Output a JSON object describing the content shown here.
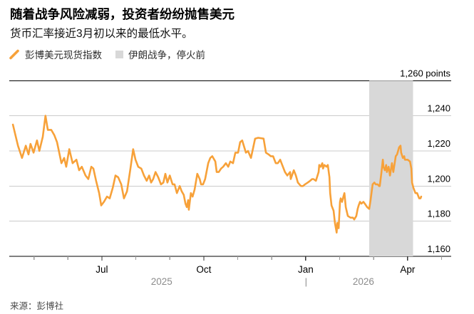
{
  "header": {
    "title": "随着战争风险减弱，投资者纷纷抛售美元",
    "subtitle": "货币汇率接近3月初以来的最低水平。"
  },
  "legend": {
    "items": [
      {
        "label": "彭博美元现货指数",
        "marker": "orange-line"
      },
      {
        "label": "伊朗战争，停火前",
        "marker": "gray-band"
      }
    ]
  },
  "source": "来源：彭博社",
  "colors": {
    "line": "#f7a139",
    "band": "#d8d8d8",
    "grid_light": "#cbcbcb",
    "grid_dark": "#000000",
    "tick_minor": "#9b9b9b",
    "tick_major": "#333333",
    "axis_text": "#000000",
    "year_text": "#8c8c8c",
    "background": "#ffffff"
  },
  "chart_data": {
    "type": "line",
    "title": "随着战争风险减弱，投资者纷纷抛售美元",
    "subtitle": "货币汇率接近3月初以来的最低水平。",
    "unit": "points",
    "grid": true,
    "legend_position": "top-left",
    "y_axis": {
      "min": 1160,
      "max": 1260,
      "ticks": [
        1260,
        1240,
        1220,
        1200,
        1180,
        1160
      ],
      "tick_labels": [
        "1,260 points",
        "1,240",
        "1,220",
        "1,200",
        "1,180",
        "1,160"
      ]
    },
    "x_axis": {
      "note": "m = months after 2025-05-01 tick; range mid-Apr 2025 to mid-Apr 2026",
      "major_ticks": [
        {
          "m": 2,
          "label": "Jul"
        },
        {
          "m": 5,
          "label": "Oct"
        },
        {
          "m": 8,
          "label": "Jan"
        },
        {
          "m": 11,
          "label": "Apr"
        }
      ],
      "minor_ticks": [
        0,
        1,
        3,
        4,
        6,
        7,
        9,
        10,
        12
      ],
      "years": [
        {
          "label": "2025",
          "center_m": 3.76
        },
        {
          "label": "2026",
          "center_m": 9.7
        }
      ],
      "year_divider_m": 8.01,
      "year_divider_glyph": "|"
    },
    "band": {
      "label": "伊朗战争，停火前",
      "start_m": 9.87,
      "end_m": 11.16
    },
    "series": [
      {
        "name": "彭博美元现货指数",
        "color": "#f7a139",
        "points": [
          [
            -0.62,
            1235
          ],
          [
            -0.47,
            1223
          ],
          [
            -0.35,
            1216
          ],
          [
            -0.24,
            1223
          ],
          [
            -0.16,
            1218
          ],
          [
            -0.1,
            1224
          ],
          [
            -0.01,
            1219
          ],
          [
            0.09,
            1226
          ],
          [
            0.16,
            1220
          ],
          [
            0.26,
            1228
          ],
          [
            0.34,
            1240
          ],
          [
            0.41,
            1232
          ],
          [
            0.51,
            1232
          ],
          [
            0.6,
            1229
          ],
          [
            0.68,
            1225
          ],
          [
            0.81,
            1213
          ],
          [
            0.89,
            1216
          ],
          [
            0.95,
            1211
          ],
          [
            1.04,
            1221
          ],
          [
            1.14,
            1213
          ],
          [
            1.25,
            1215
          ],
          [
            1.33,
            1209
          ],
          [
            1.41,
            1211
          ],
          [
            1.52,
            1206
          ],
          [
            1.6,
            1204
          ],
          [
            1.69,
            1211
          ],
          [
            1.75,
            1210
          ],
          [
            1.83,
            1203
          ],
          [
            1.92,
            1196
          ],
          [
            1.98,
            1189
          ],
          [
            2.06,
            1191
          ],
          [
            2.15,
            1194
          ],
          [
            2.23,
            1193
          ],
          [
            2.32,
            1199
          ],
          [
            2.4,
            1206
          ],
          [
            2.48,
            1205
          ],
          [
            2.57,
            1201
          ],
          [
            2.65,
            1193
          ],
          [
            2.74,
            1197
          ],
          [
            2.84,
            1210
          ],
          [
            2.92,
            1221
          ],
          [
            2.99,
            1215
          ],
          [
            3.07,
            1211
          ],
          [
            3.16,
            1210
          ],
          [
            3.24,
            1206
          ],
          [
            3.32,
            1203
          ],
          [
            3.39,
            1206
          ],
          [
            3.45,
            1202
          ],
          [
            3.51,
            1204
          ],
          [
            3.58,
            1208
          ],
          [
            3.66,
            1205
          ],
          [
            3.74,
            1201
          ],
          [
            3.81,
            1202
          ],
          [
            3.87,
            1207
          ],
          [
            3.93,
            1202
          ],
          [
            4.0,
            1206
          ],
          [
            4.08,
            1201
          ],
          [
            4.14,
            1201
          ],
          [
            4.21,
            1196
          ],
          [
            4.29,
            1200
          ],
          [
            4.35,
            1197
          ],
          [
            4.41,
            1195
          ],
          [
            4.46,
            1190
          ],
          [
            4.5,
            1188
          ],
          [
            4.54,
            1192
          ],
          [
            4.56,
            1186.5
          ],
          [
            4.62,
            1196
          ],
          [
            4.67,
            1194
          ],
          [
            4.73,
            1198
          ],
          [
            4.81,
            1207
          ],
          [
            4.88,
            1204
          ],
          [
            4.92,
            1201
          ],
          [
            4.98,
            1201
          ],
          [
            5.04,
            1204
          ],
          [
            5.13,
            1213
          ],
          [
            5.19,
            1216
          ],
          [
            5.25,
            1217
          ],
          [
            5.34,
            1214
          ],
          [
            5.38,
            1208
          ],
          [
            5.44,
            1208
          ],
          [
            5.51,
            1210
          ],
          [
            5.57,
            1211
          ],
          [
            5.65,
            1213
          ],
          [
            5.72,
            1211
          ],
          [
            5.78,
            1214
          ],
          [
            5.86,
            1213
          ],
          [
            5.93,
            1219
          ],
          [
            6.01,
            1219
          ],
          [
            6.07,
            1225
          ],
          [
            6.13,
            1226
          ],
          [
            6.24,
            1219
          ],
          [
            6.3,
            1220
          ],
          [
            6.39,
            1216
          ],
          [
            6.51,
            1227
          ],
          [
            6.6,
            1227.5
          ],
          [
            6.76,
            1227
          ],
          [
            6.83,
            1219
          ],
          [
            6.91,
            1218
          ],
          [
            6.97,
            1217
          ],
          [
            7.04,
            1217
          ],
          [
            7.12,
            1213
          ],
          [
            7.18,
            1213
          ],
          [
            7.25,
            1215
          ],
          [
            7.33,
            1211
          ],
          [
            7.39,
            1208
          ],
          [
            7.46,
            1206
          ],
          [
            7.54,
            1208
          ],
          [
            7.56,
            1204
          ],
          [
            7.65,
            1209
          ],
          [
            7.71,
            1206
          ],
          [
            7.77,
            1202
          ],
          [
            7.86,
            1200
          ],
          [
            7.92,
            1200
          ],
          [
            7.98,
            1201
          ],
          [
            8.06,
            1202
          ],
          [
            8.13,
            1203
          ],
          [
            8.19,
            1204
          ],
          [
            8.23,
            1204
          ],
          [
            8.3,
            1203
          ],
          [
            8.38,
            1208
          ],
          [
            8.4,
            1212
          ],
          [
            8.44,
            1211
          ],
          [
            8.49,
            1213
          ],
          [
            8.51,
            1210
          ],
          [
            8.55,
            1212
          ],
          [
            8.61,
            1211
          ],
          [
            8.65,
            1212
          ],
          [
            8.7,
            1205
          ],
          [
            8.72,
            1196
          ],
          [
            8.76,
            1189
          ],
          [
            8.8,
            1187
          ],
          [
            8.82,
            1186
          ],
          [
            8.86,
            1179
          ],
          [
            8.91,
            1173.5
          ],
          [
            8.93,
            1179
          ],
          [
            8.97,
            1176
          ],
          [
            9.01,
            1191
          ],
          [
            9.03,
            1193
          ],
          [
            9.07,
            1191
          ],
          [
            9.11,
            1194
          ],
          [
            9.14,
            1196
          ],
          [
            9.18,
            1188
          ],
          [
            9.24,
            1183
          ],
          [
            9.32,
            1182
          ],
          [
            9.39,
            1182
          ],
          [
            9.43,
            1181
          ],
          [
            9.49,
            1183
          ],
          [
            9.53,
            1187
          ],
          [
            9.56,
            1189
          ],
          [
            9.6,
            1191
          ],
          [
            9.64,
            1190
          ],
          [
            9.7,
            1191
          ],
          [
            9.74,
            1190
          ],
          [
            9.81,
            1188
          ],
          [
            9.87,
            1187
          ],
          [
            9.91,
            1192
          ],
          [
            9.95,
            1198
          ],
          [
            9.97,
            1201
          ],
          [
            10.02,
            1202
          ],
          [
            10.06,
            1201
          ],
          [
            10.12,
            1201
          ],
          [
            10.16,
            1200
          ],
          [
            10.18,
            1200
          ],
          [
            10.23,
            1208
          ],
          [
            10.27,
            1215
          ],
          [
            10.29,
            1211
          ],
          [
            10.33,
            1209
          ],
          [
            10.37,
            1212
          ],
          [
            10.39,
            1208
          ],
          [
            10.44,
            1211
          ],
          [
            10.48,
            1206
          ],
          [
            10.54,
            1213
          ],
          [
            10.58,
            1208
          ],
          [
            10.65,
            1217
          ],
          [
            10.69,
            1218
          ],
          [
            10.75,
            1222
          ],
          [
            10.79,
            1223
          ],
          [
            10.81,
            1219
          ],
          [
            10.86,
            1216
          ],
          [
            10.9,
            1217
          ],
          [
            10.92,
            1215
          ],
          [
            10.96,
            1215
          ],
          [
            11.0,
            1215
          ],
          [
            11.07,
            1214
          ],
          [
            11.11,
            1210
          ],
          [
            11.13,
            1202
          ],
          [
            11.17,
            1199
          ],
          [
            11.21,
            1197
          ],
          [
            11.23,
            1196
          ],
          [
            11.28,
            1196
          ],
          [
            11.32,
            1194
          ],
          [
            11.34,
            1193
          ],
          [
            11.38,
            1193
          ],
          [
            11.4,
            1194
          ]
        ]
      }
    ]
  }
}
